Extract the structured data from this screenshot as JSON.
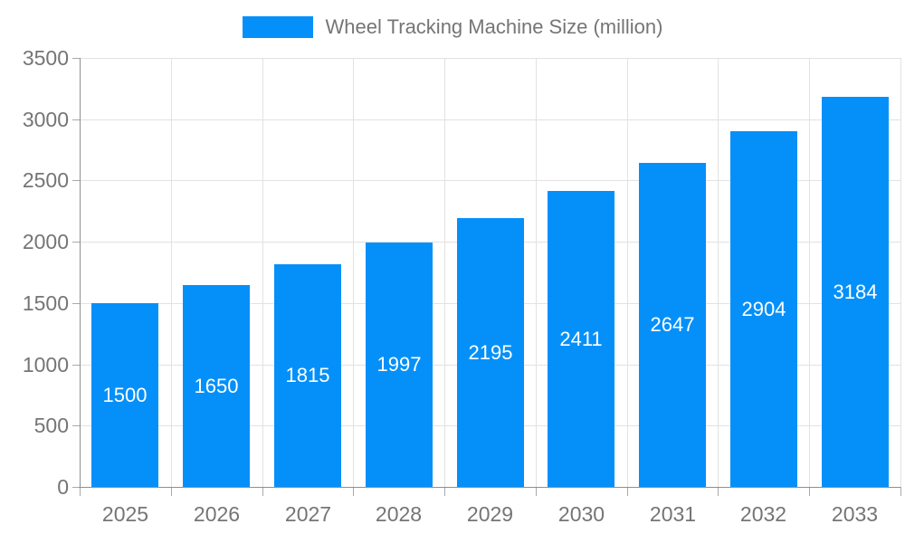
{
  "legend": {
    "label": "Wheel Tracking Machine Size (million)"
  },
  "chart_data": {
    "type": "bar",
    "title": "Wheel Tracking Machine Size (million)",
    "categories": [
      "2025",
      "2026",
      "2027",
      "2028",
      "2029",
      "2030",
      "2031",
      "2032",
      "2033"
    ],
    "values": [
      1500,
      1650,
      1815,
      1997,
      2195,
      2411,
      2647,
      2904,
      3184
    ],
    "series": [
      {
        "name": "Wheel Tracking Machine Size (million)",
        "values": [
          1500,
          1650,
          1815,
          1997,
          2195,
          2411,
          2647,
          2904,
          3184
        ]
      }
    ],
    "xlabel": "",
    "ylabel": "",
    "ylim": [
      0,
      3500
    ],
    "ytick_step": 500,
    "ytick_labels": [
      "0",
      "500",
      "1000",
      "1500",
      "2000",
      "2500",
      "3000",
      "3500"
    ],
    "grid": true,
    "legend_position": "top-center",
    "value_labels": "inside-center",
    "colors": {
      "bar": "#0590f9",
      "axis_line": "#8f8f8f",
      "tick": "#a9a9a9",
      "grid_line": "#e2e2e2",
      "text": "#757575",
      "value_label_text": "#ffffff",
      "background": "#ffffff"
    }
  }
}
